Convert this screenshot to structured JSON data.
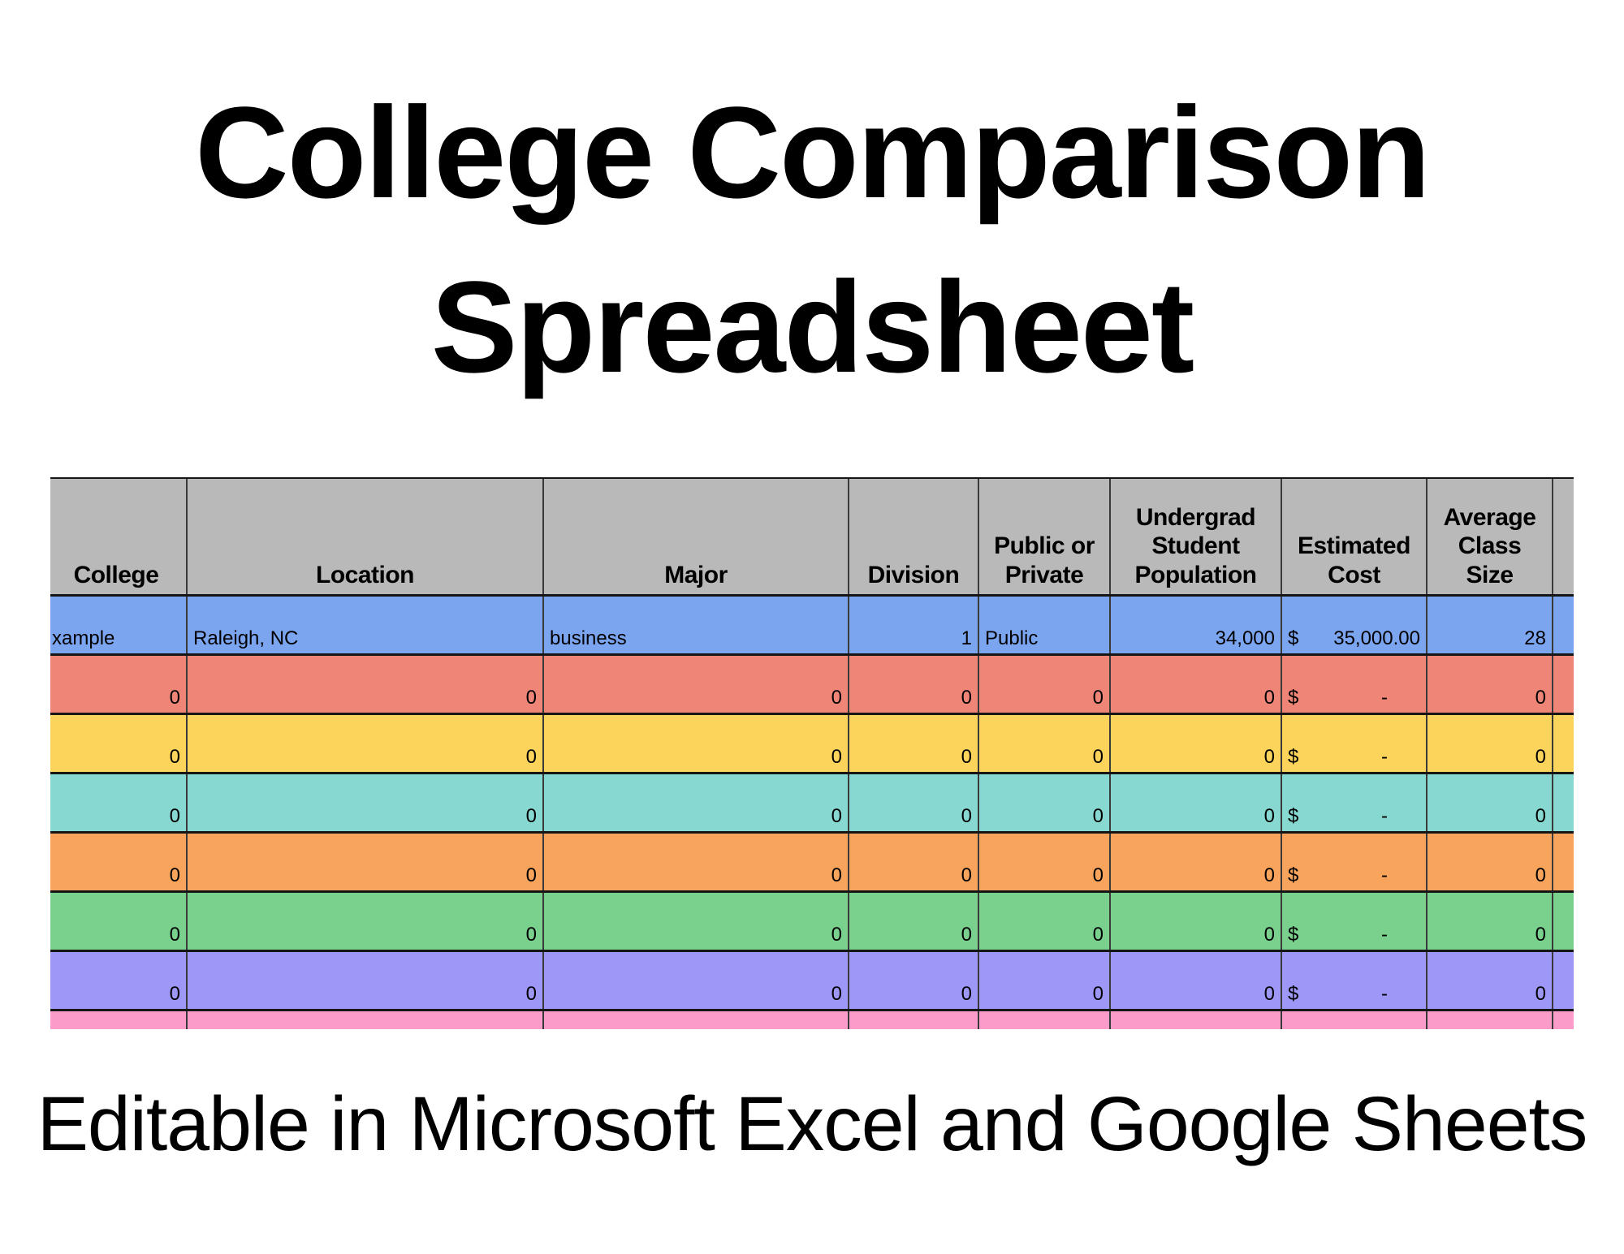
{
  "title": {
    "line1": "College Comparison",
    "line2": "Spreadsheet"
  },
  "caption": "Editable in Microsoft Excel and Google Sheets",
  "colors": {
    "header_bg": "#b9b9b9",
    "grid_vertical": "#3a3a3a",
    "grid_horizontal": "#161616",
    "row_example_blue": "#7ca5ef",
    "row_red": "#ee8577",
    "row_yellow": "#fcd35b",
    "row_teal": "#87d8d1",
    "row_orange": "#f9a45c",
    "row_green": "#7ad18e",
    "row_purple": "#9d98f7",
    "row_pink": "#fa9bca"
  },
  "table": {
    "headers": {
      "college": "College",
      "location": "Location",
      "major": "Major",
      "division": "Division",
      "public_private": "Public or\nPrivate",
      "population": "Undergrad\nStudent\nPopulation",
      "cost": "Estimated\nCost",
      "class_size": "Average\nClass Size",
      "extra": ""
    },
    "rows": [
      {
        "label": "example",
        "color": "#7ca5ef",
        "college": "xample",
        "location": "Raleigh, NC",
        "major": "business",
        "division": "1",
        "public_private": "Public",
        "population": "34,000",
        "currency": "$",
        "cost": "35,000.00",
        "class_size": "28",
        "extra": ""
      },
      {
        "label": "red",
        "color": "#ee8577",
        "college": "0",
        "location": "0",
        "major": "0",
        "division": "0",
        "public_private": "0",
        "population": "0",
        "currency": "$",
        "cost": "-",
        "class_size": "0",
        "extra": ""
      },
      {
        "label": "yellow",
        "color": "#fcd35b",
        "college": "0",
        "location": "0",
        "major": "0",
        "division": "0",
        "public_private": "0",
        "population": "0",
        "currency": "$",
        "cost": "-",
        "class_size": "0",
        "extra": ""
      },
      {
        "label": "teal",
        "color": "#87d8d1",
        "college": "0",
        "location": "0",
        "major": "0",
        "division": "0",
        "public_private": "0",
        "population": "0",
        "currency": "$",
        "cost": "-",
        "class_size": "0",
        "extra": ""
      },
      {
        "label": "orange",
        "color": "#f9a45c",
        "college": "0",
        "location": "0",
        "major": "0",
        "division": "0",
        "public_private": "0",
        "population": "0",
        "currency": "$",
        "cost": "-",
        "class_size": "0",
        "extra": ""
      },
      {
        "label": "green",
        "color": "#7ad18e",
        "college": "0",
        "location": "0",
        "major": "0",
        "division": "0",
        "public_private": "0",
        "population": "0",
        "currency": "$",
        "cost": "-",
        "class_size": "0",
        "extra": ""
      },
      {
        "label": "purple",
        "color": "#9d98f7",
        "college": "0",
        "location": "0",
        "major": "0",
        "division": "0",
        "public_private": "0",
        "population": "0",
        "currency": "$",
        "cost": "-",
        "class_size": "0",
        "extra": ""
      },
      {
        "label": "pink",
        "color": "#fa9bca",
        "college": "",
        "location": "",
        "major": "",
        "division": "",
        "public_private": "",
        "population": "",
        "currency": "",
        "cost": "",
        "class_size": "",
        "extra": ""
      }
    ]
  }
}
